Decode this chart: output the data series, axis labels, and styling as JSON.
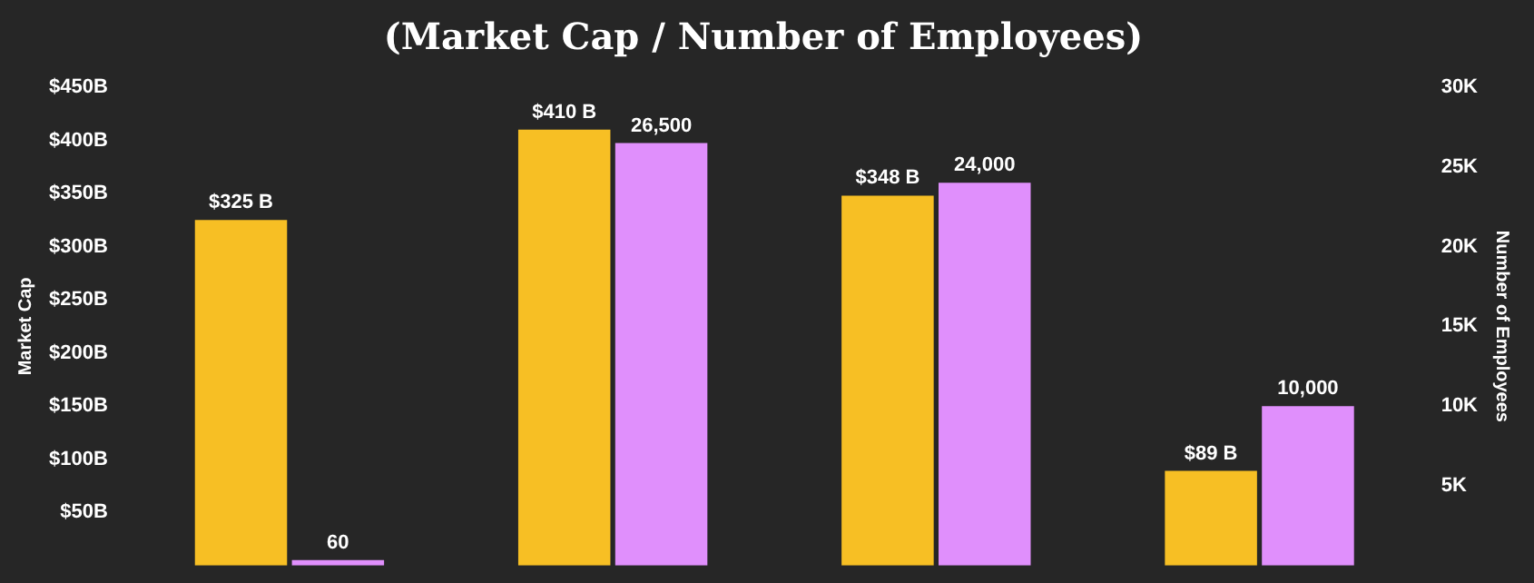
{
  "chart_data": {
    "type": "bar",
    "title": "(Market Cap / Number of Employees)",
    "ylabel": "Market Cap",
    "y2label": "Number of Employees",
    "categories": [
      null,
      null,
      null,
      null
    ],
    "series": [
      {
        "color": "#f7bf24",
        "values": [
          325,
          410,
          348,
          89
        ],
        "value_labels": [
          "$325 B",
          "$410 B",
          "$348 B",
          "$89 B"
        ]
      },
      {
        "color": "#e08ffc",
        "axis": "y2",
        "values": [
          60,
          26500,
          24000,
          10000
        ],
        "value_labels": [
          "60",
          "26,500",
          "24,000",
          "10,000"
        ]
      }
    ],
    "ylim": [
      0,
      450
    ],
    "yticks": [
      {
        "value": 50,
        "label": "$50B"
      },
      {
        "value": 100,
        "label": "$100B"
      },
      {
        "value": 150,
        "label": "$150B"
      },
      {
        "value": 200,
        "label": "$200B"
      },
      {
        "value": 250,
        "label": "$250B"
      },
      {
        "value": 300,
        "label": "$300B"
      },
      {
        "value": 350,
        "label": "$350B"
      },
      {
        "value": 400,
        "label": "$400B"
      },
      {
        "value": 450,
        "label": "$450B"
      }
    ],
    "y2lim": [
      0,
      30000
    ],
    "y2ticks": [
      {
        "value": 5000,
        "label": "5K"
      },
      {
        "value": 10000,
        "label": "10K"
      },
      {
        "value": 15000,
        "label": "15K"
      },
      {
        "value": 20000,
        "label": "20K"
      },
      {
        "value": 25000,
        "label": "25K"
      },
      {
        "value": 30000,
        "label": "30K"
      }
    ],
    "grid": false,
    "legend": false
  }
}
